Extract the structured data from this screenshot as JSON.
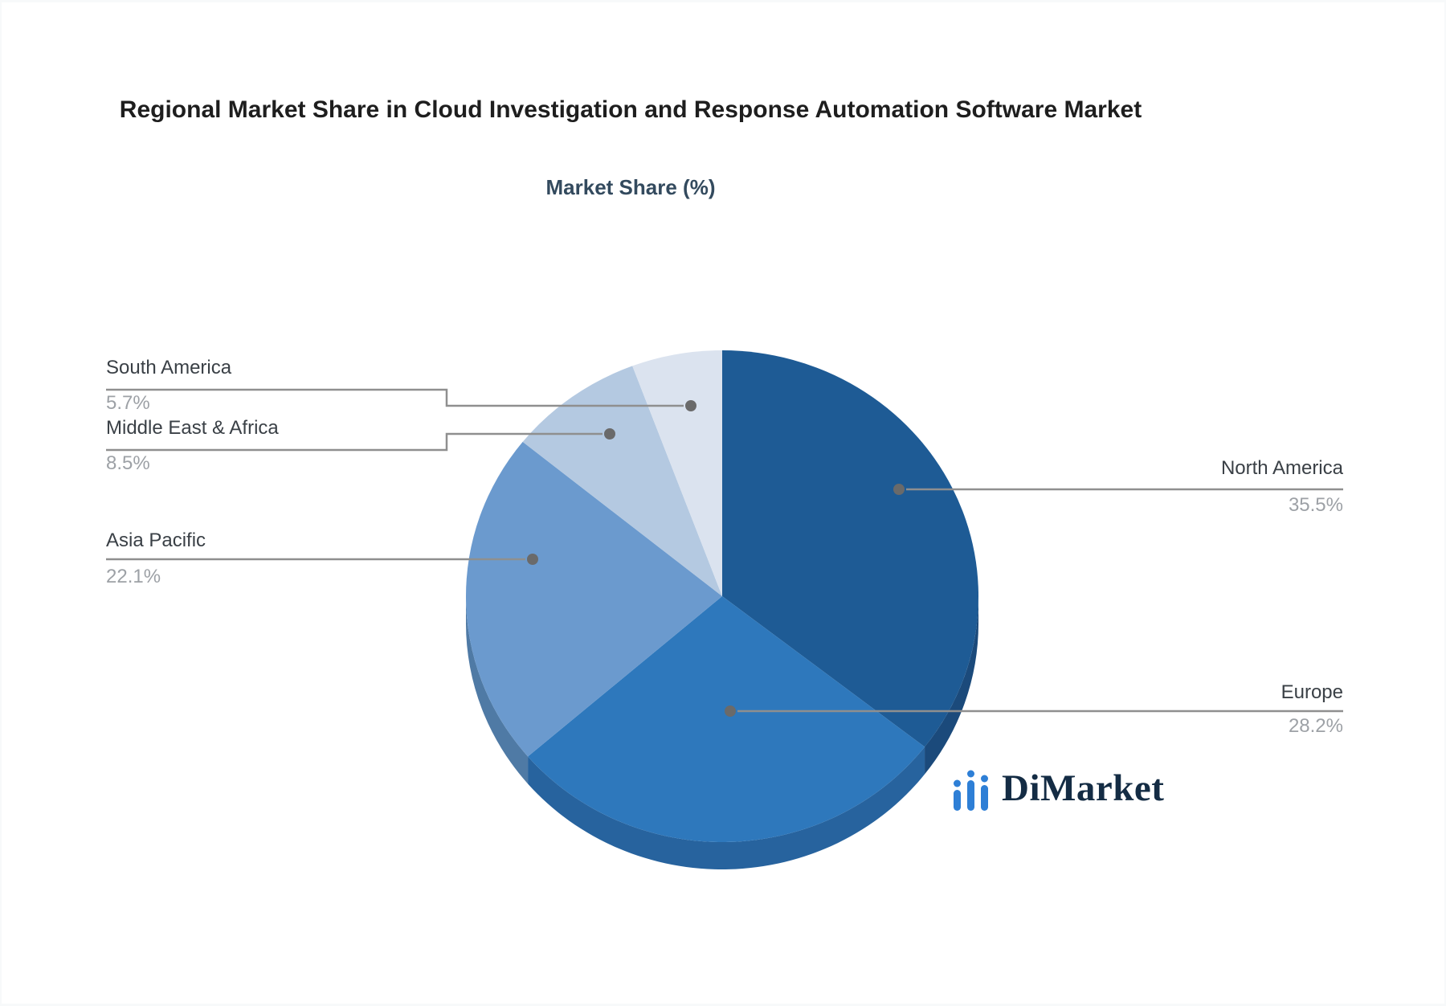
{
  "header": {
    "title": "Regional Market Share in Cloud Investigation and Response Automation Software Market",
    "subtitle": "Market Share (%)"
  },
  "chart_data": {
    "type": "pie",
    "style": "3d",
    "title": "Regional Market Share in Cloud Investigation and Response Automation Software Market",
    "subtitle": "Market Share (%)",
    "unit": "%",
    "start_angle_deg": 0,
    "direction": "clockwise",
    "legend_position": "leader-lines",
    "leader_line_color": "#8f8f8f",
    "dot_color": "#6a6a6a",
    "slices": [
      {
        "label": "North America",
        "value": 35.5,
        "display": "35.5%",
        "color": "#1e5b95",
        "side_color": "#1b4a7b"
      },
      {
        "label": "Europe",
        "value": 28.2,
        "display": "28.2%",
        "color": "#2e78bc",
        "side_color": "#27639e"
      },
      {
        "label": "Asia Pacific",
        "value": 22.1,
        "display": "22.1%",
        "color": "#6b9ace",
        "side_color": "#4f7aa5"
      },
      {
        "label": "Middle East & Africa",
        "value": 8.5,
        "display": "8.5%",
        "color": "#b4c9e1",
        "side_color": "#8fa9c4"
      },
      {
        "label": "South America",
        "value": 5.7,
        "display": "5.7%",
        "color": "#dbe3ef",
        "side_color": "#aab4c4"
      }
    ]
  },
  "branding": {
    "logo_text": "DiMarket",
    "logo_icon": "bar-chart-icon",
    "logo_text_color": "#142c44",
    "logo_icon_color": "#2e7fd6"
  }
}
